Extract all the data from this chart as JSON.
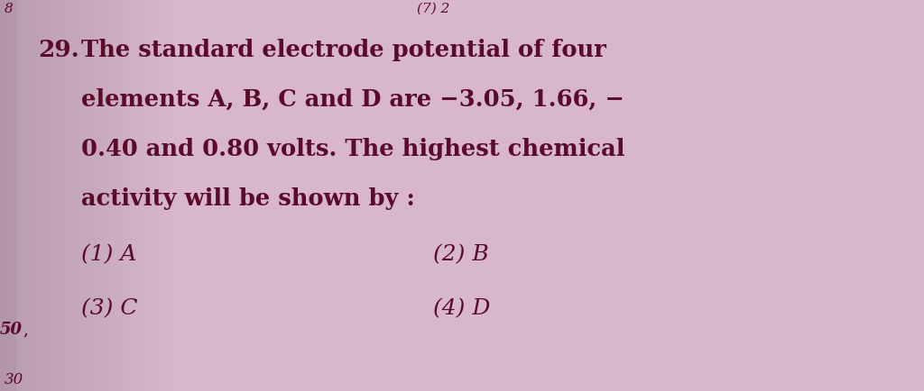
{
  "background_color": "#d9b8cc",
  "background_right": "#c9a0bc",
  "question_number": "29.",
  "question_text_line1": "The standard electrode potential of four",
  "question_text_line2": "elements A, B, C and D are −3.05, 1.66, −",
  "question_text_line3": "0.40 and 0.80 volts. The highest chemical",
  "question_text_line4": "activity will be shown by :",
  "option1": "(1) A",
  "option2": "(2) B",
  "option3": "(3) C",
  "option4": "(4) D",
  "text_color": "#5a0a2a",
  "top_text": "(7) 2",
  "left_label": "50",
  "bottom_label": "30",
  "top_left_label": "8"
}
